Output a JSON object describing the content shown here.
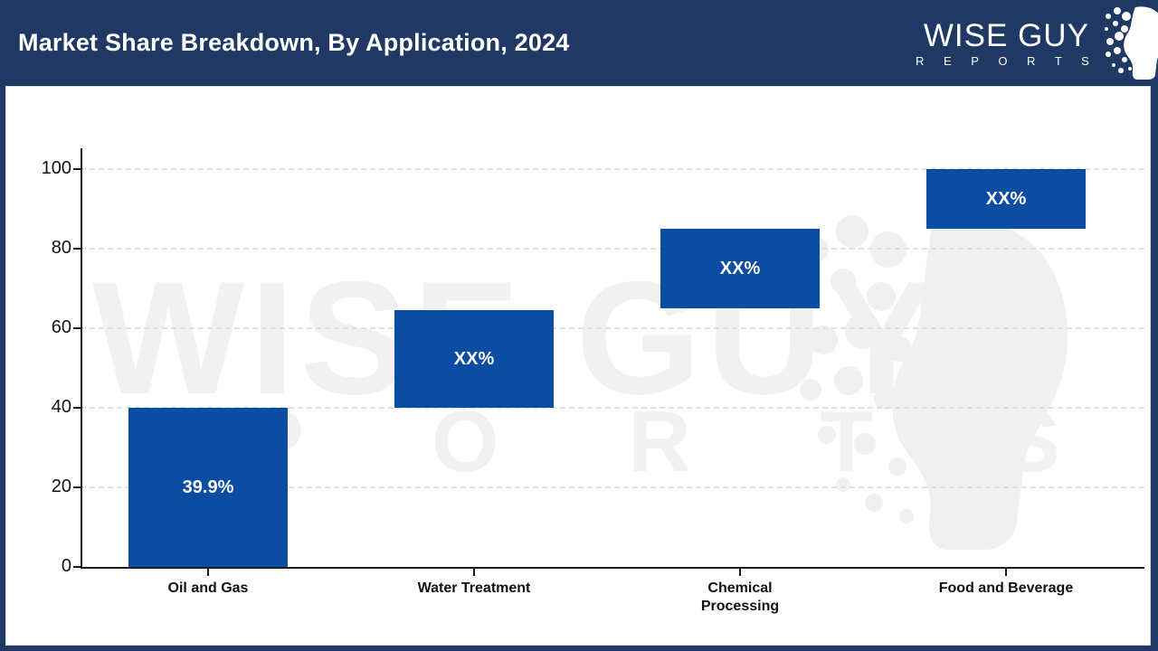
{
  "header": {
    "title": "Market Share Breakdown, By Application, 2024",
    "logo": {
      "line1": "WISE GUY",
      "line2": "R E P O R T S"
    }
  },
  "watermark": {
    "line1": "WISE GUY.",
    "line2": "P O R T S"
  },
  "chart_data": {
    "type": "bar",
    "subtype": "floating-waterfall",
    "title": "Market Share Breakdown, By Application, 2024",
    "categories": [
      "Oil and Gas",
      "Water Treatment",
      "Chemical Processing",
      "Food and Beverage"
    ],
    "segments": [
      {
        "category": "Oil and Gas",
        "start": 0,
        "end": 39.9,
        "label": "39.9%"
      },
      {
        "category": "Water Treatment",
        "start": 40,
        "end": 64.5,
        "label": "XX%"
      },
      {
        "category": "Chemical Processing",
        "start": 65,
        "end": 85,
        "label": "XX%"
      },
      {
        "category": "Food and Beverage",
        "start": 85,
        "end": 100,
        "label": "XX%"
      }
    ],
    "xlabel": "",
    "ylabel": "",
    "ylim": [
      0,
      100
    ],
    "yticks": [
      0,
      20,
      40,
      60,
      80,
      100
    ],
    "grid": "horizontal-dashed",
    "legend": "none"
  },
  "colors": {
    "header_bg": "#1f3864",
    "bar": "#0b4da2",
    "grid": "#e0e0e0",
    "axis": "#1a1a1a",
    "watermark": "#f1f1f1",
    "panel_border": "#d9d9d9",
    "title_text": "#ffffff",
    "bar_label_text": "#ffffff"
  }
}
